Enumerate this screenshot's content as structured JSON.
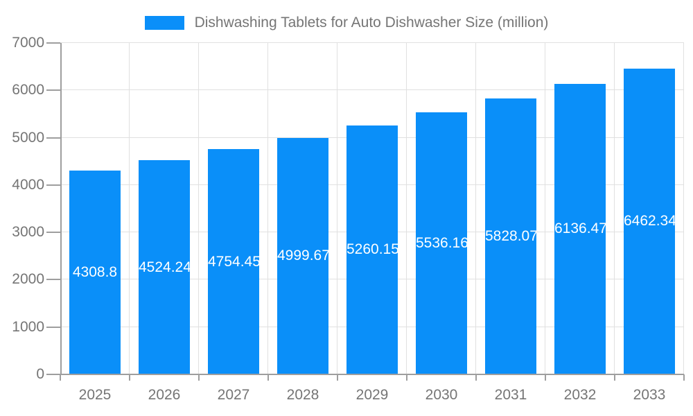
{
  "chart_data": {
    "type": "bar",
    "title": "Dishwashing Tablets for Auto Dishwasher Size (million)",
    "categories": [
      "2025",
      "2026",
      "2027",
      "2028",
      "2029",
      "2030",
      "2031",
      "2032",
      "2033"
    ],
    "values": [
      4308.8,
      4524.24,
      4754.45,
      4999.67,
      5260.15,
      5536.16,
      5828.07,
      6136.47,
      6462.34
    ],
    "bar_labels": [
      "4308.8",
      "4524.24",
      "4754.45",
      "4999.67",
      "5260.15",
      "5536.16",
      "5828.07",
      "6136.47",
      "6462.34"
    ],
    "xlabel": "",
    "ylabel": "",
    "ylim": [
      0,
      7000
    ],
    "yticks": [
      0,
      1000,
      2000,
      3000,
      4000,
      5000,
      6000,
      7000
    ],
    "grid": "both",
    "legend_position": "top-center",
    "colors": {
      "bar": "#0a8ff9",
      "bar_label": "#ffffff",
      "axis_text": "#757575",
      "grid_line": "#e0e0e0",
      "axis_line": "#9e9e9e",
      "background": "#ffffff"
    }
  }
}
